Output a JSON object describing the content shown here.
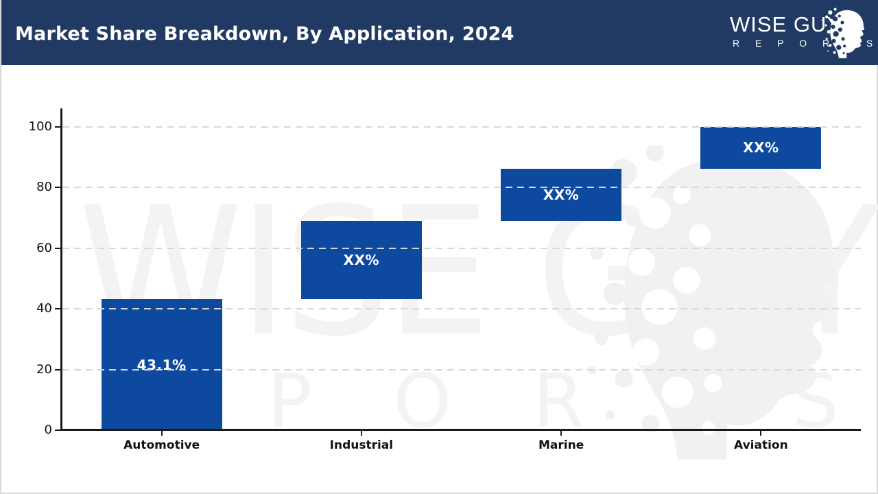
{
  "header": {
    "title": "Market Share Breakdown, By Application, 2024",
    "logo": {
      "line1": "WISE GUY",
      "line2": "R E P O R T S"
    }
  },
  "watermark": {
    "line1": "WISE GUY",
    "line2": "P O R T S"
  },
  "colors": {
    "header_bg": "#213a64",
    "bar": "#0d4a9f",
    "gridline": "#d8d8d8",
    "axis": "#1a1a1a",
    "watermark": "#f3f3f3"
  },
  "chart_data": {
    "type": "bar",
    "subtype": "waterfall",
    "title": "Market Share Breakdown, By Application, 2024",
    "categories": [
      "Automotive",
      "Industrial",
      "Marine",
      "Aviation"
    ],
    "series": [
      {
        "name": "Market Share",
        "segments": [
          {
            "category": "Automotive",
            "start": 0,
            "end": 43.1,
            "label": "43.1%"
          },
          {
            "category": "Industrial",
            "start": 43.1,
            "end": 69.0,
            "label": "XX%"
          },
          {
            "category": "Marine",
            "start": 69.0,
            "end": 86.2,
            "label": "XX%"
          },
          {
            "category": "Aviation",
            "start": 86.2,
            "end": 100,
            "label": "XX%"
          }
        ]
      }
    ],
    "xlabel": "",
    "ylabel": "",
    "ylim": [
      0,
      100
    ],
    "yticks": [
      0,
      20,
      40,
      60,
      80,
      100
    ],
    "grid": "dashed-horizontal",
    "legend": "none"
  }
}
